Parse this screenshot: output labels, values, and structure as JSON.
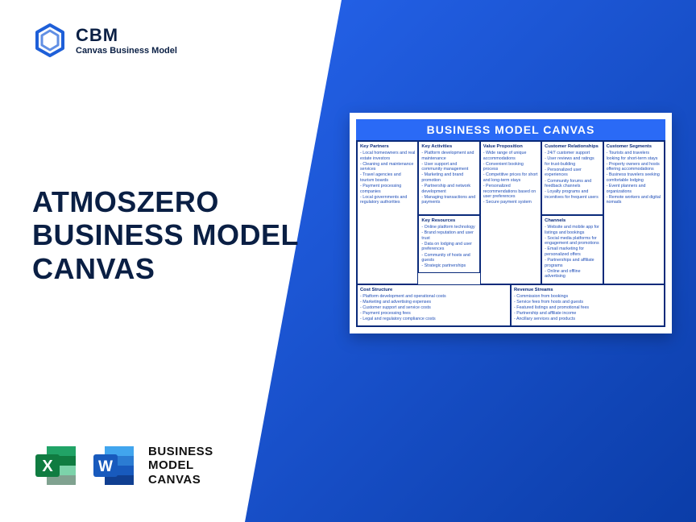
{
  "logo": {
    "title": "CBM",
    "subtitle": "Canvas Business Model"
  },
  "headline": {
    "l1": "ATMOSZERO",
    "l2": "BUSINESS MODEL",
    "l3": "CANVAS"
  },
  "bottom_label": {
    "l1": "BUSINESS",
    "l2": "MODEL",
    "l3": "CANVAS"
  },
  "canvas": {
    "title": "BUSINESS MODEL CANVAS",
    "key_partners": {
      "title": "Key Partners",
      "items": [
        "Local homeowners and real estate investors",
        "Cleaning and maintenance services",
        "Travel agencies and tourism boards",
        "Payment processing companies",
        "Local governments and regulatory authorities"
      ]
    },
    "key_activities": {
      "title": "Key Activities",
      "items": [
        "Platform development and maintenance",
        "User support and community management",
        "Marketing and brand promotion",
        "Partnership and network development",
        "Managing transactions and payments"
      ]
    },
    "key_resources": {
      "title": "Key Resources",
      "items": [
        "Online platform technology",
        "Brand reputation and user trust",
        "Data on lodging and user preferences",
        "Community of hosts and guests",
        "Strategic partnerships"
      ]
    },
    "value_proposition": {
      "title": "Value Proposition",
      "items": [
        "Wide range of unique accommodations",
        "Convenient booking process",
        "Competitive prices for short and long-term stays",
        "Personalized recommendations based on user preferences",
        "Secure payment system"
      ]
    },
    "customer_relationships": {
      "title": "Customer Relationships",
      "items": [
        "24/7 customer support",
        "User reviews and ratings for trust-building",
        "Personalized user experiences",
        "Community forums and feedback channels",
        "Loyalty programs and incentives for frequent users"
      ]
    },
    "channels": {
      "title": "Channels",
      "items": [
        "Website and mobile app for listings and bookings",
        "Social media platforms for engagement and promotions",
        "Email marketing for personalized offers",
        "Partnerships and affiliate programs",
        "Online and offline advertising"
      ]
    },
    "customer_segments": {
      "title": "Customer Segments",
      "items": [
        "Tourists and travelers looking for short-term stays",
        "Property owners and hosts offering accommodations",
        "Business travelers seeking comfortable lodging",
        "Event planners and organizations",
        "Remote workers and digital nomads"
      ]
    },
    "cost_structure": {
      "title": "Cost Structure",
      "items": [
        "Platform development and operational costs",
        "Marketing and advertising expenses",
        "Customer support and service costs",
        "Payment processing fees",
        "Legal and regulatory compliance costs"
      ]
    },
    "revenue_streams": {
      "title": "Revenue Streams",
      "items": [
        "Commission from bookings",
        "Service fees from hosts and guests",
        "Featured listings and promotional fees",
        "Partnership and affiliate income",
        "Ancillary services and products"
      ]
    }
  },
  "colors": {
    "brand_blue": "#2563eb",
    "dark_navy": "#0a1f44",
    "canvas_header": "#2a6af6",
    "canvas_border": "#0a2a7a",
    "canvas_text": "#1e4db7",
    "excel_green": "#107c41",
    "word_blue": "#185abd"
  }
}
